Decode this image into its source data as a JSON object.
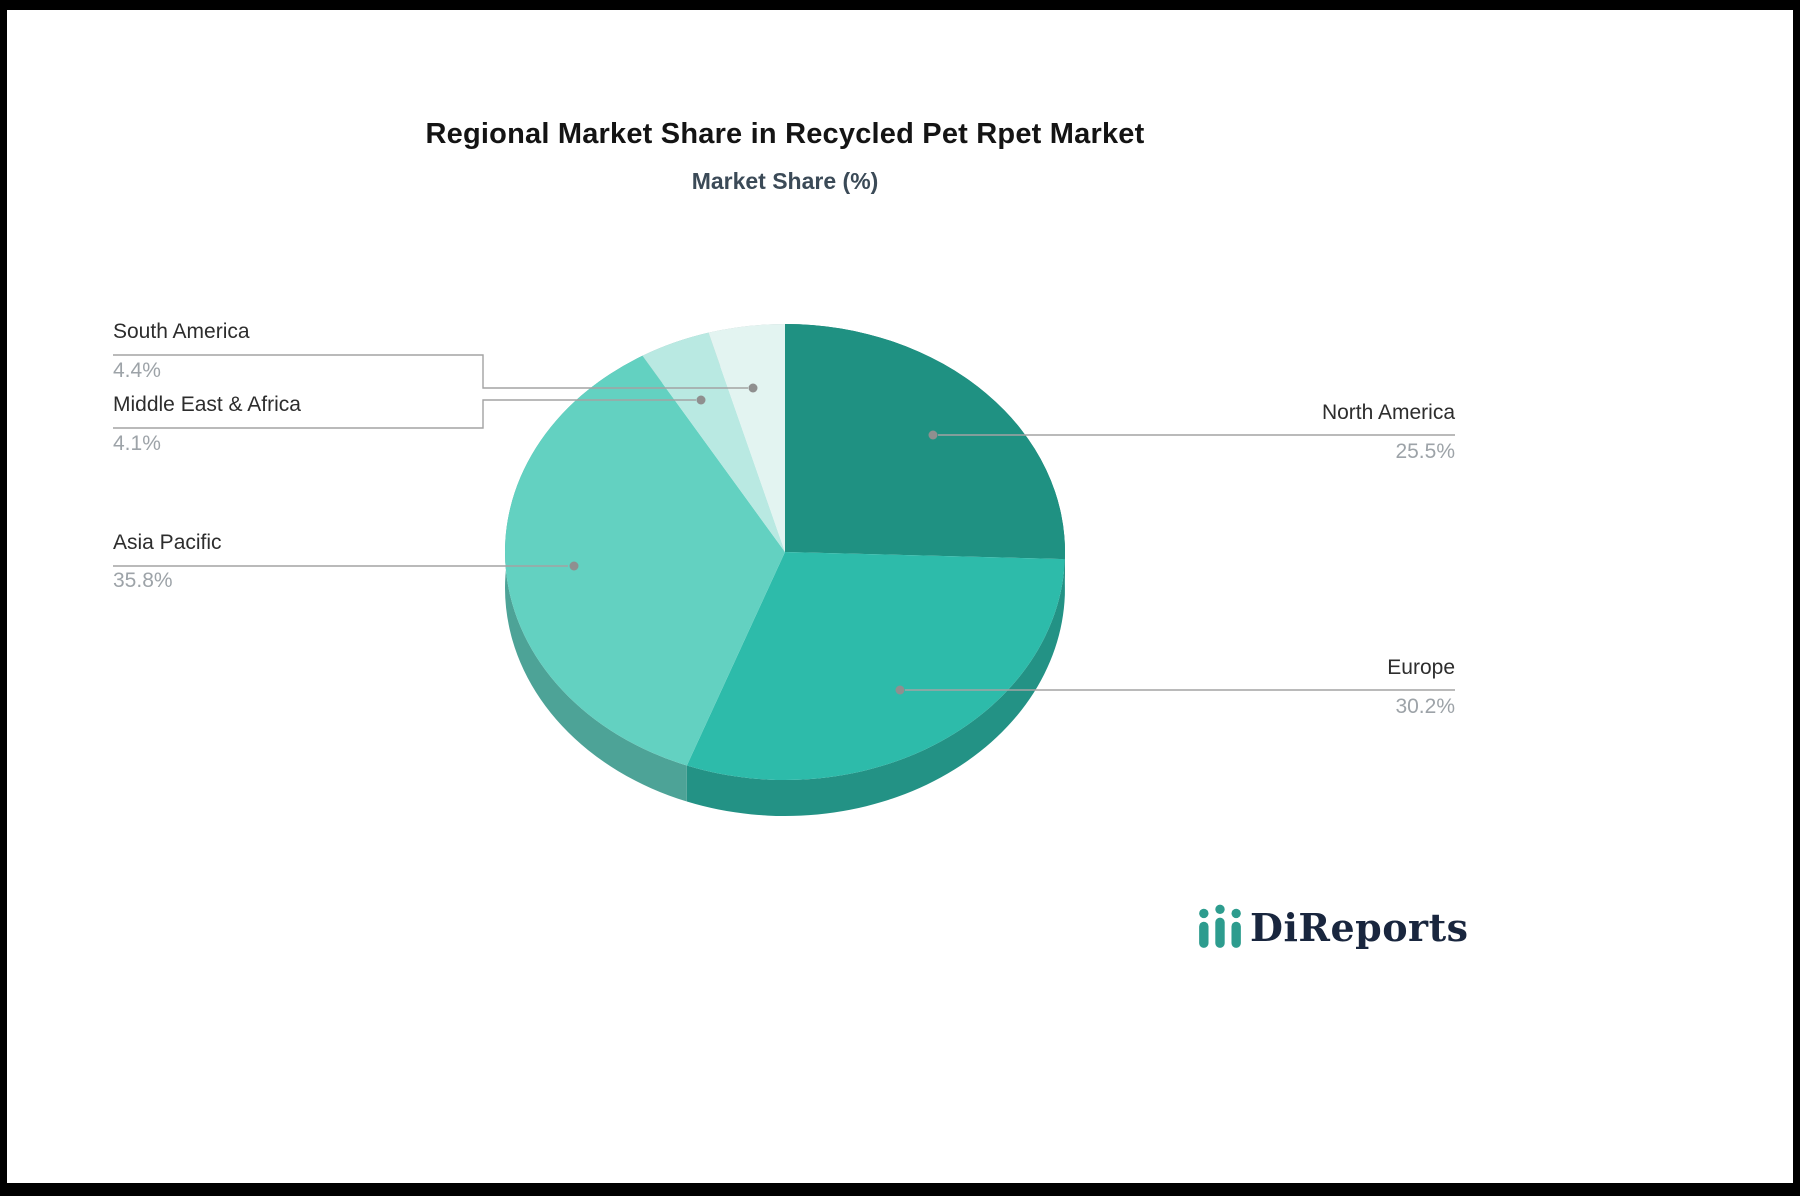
{
  "chart_data": {
    "type": "pie",
    "title": "Regional Market Share in Recycled Pet Rpet Market",
    "subtitle": "Market Share (%)",
    "unit": "%",
    "labels": [
      "North America",
      "Europe",
      "Asia Pacific",
      "Middle East & Africa",
      "South America"
    ],
    "values": [
      25.5,
      30.2,
      35.8,
      4.1,
      4.4
    ],
    "display_values": [
      "25.5%",
      "30.2%",
      "35.8%",
      "4.1%",
      "4.4%"
    ],
    "colors": [
      "#1f9182",
      "#2dbbaa",
      "#63d1c1",
      "#b9e9e2",
      "#e3f4f1"
    ],
    "start_angle_deg": -90,
    "direction": "clockwise",
    "effect_3d": true,
    "legend": "none",
    "label_style": "callout-lines"
  },
  "branding": {
    "logo_text": "DiReports",
    "logo_icon": "bar-chart-icon",
    "logo_icon_color": "#2d9c8e",
    "logo_text_color": "#19263e"
  }
}
